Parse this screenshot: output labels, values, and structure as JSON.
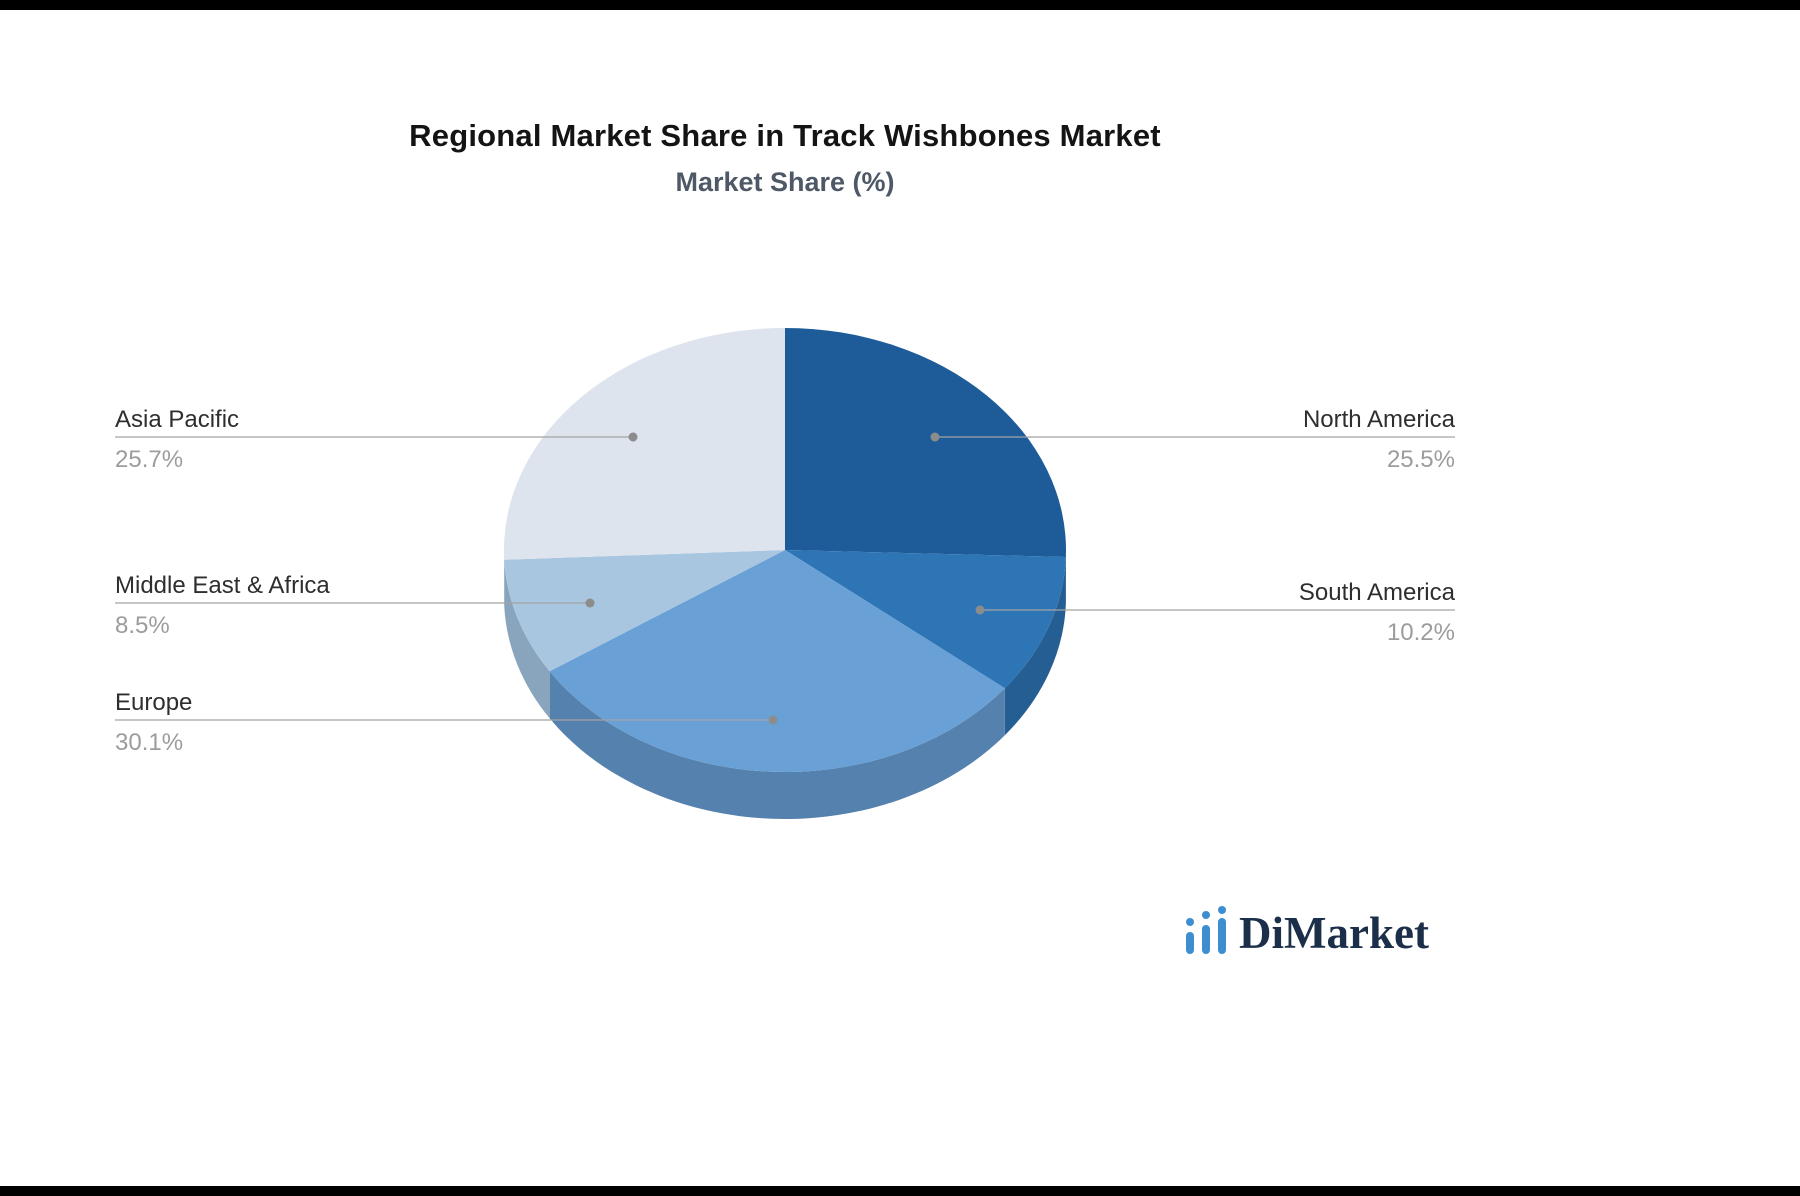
{
  "chart_data": {
    "type": "pie",
    "style": "3d",
    "title": "Regional Market Share in Track Wishbones Market",
    "subtitle": "Market Share (%)",
    "unit": "%",
    "labels": [
      "North America",
      "South America",
      "Europe",
      "Middle East & Africa",
      "Asia Pacific"
    ],
    "values": [
      25.5,
      10.2,
      30.1,
      8.5,
      25.7
    ],
    "colors": [
      "#1e5c99",
      "#2e75b6",
      "#69a0d6",
      "#a9c6e0",
      "#dde4ee"
    ],
    "side_colors": [
      "#17497a",
      "#255e92",
      "#5481ad",
      "#89a5bd",
      "#b6bfcc"
    ],
    "start_angle_deg": 0,
    "direction": "clockwise",
    "legend_position": "none",
    "label_color": "#2e2e2e",
    "value_color": "#9c9c9c",
    "leader_line_color": "#a3a3a3"
  },
  "branding": {
    "logo_text": "DiMarket",
    "logo_icon": "bar-chart-icon",
    "logo_icon_color": "#3d8ed0",
    "logo_text_color": "#1c2f4a"
  }
}
